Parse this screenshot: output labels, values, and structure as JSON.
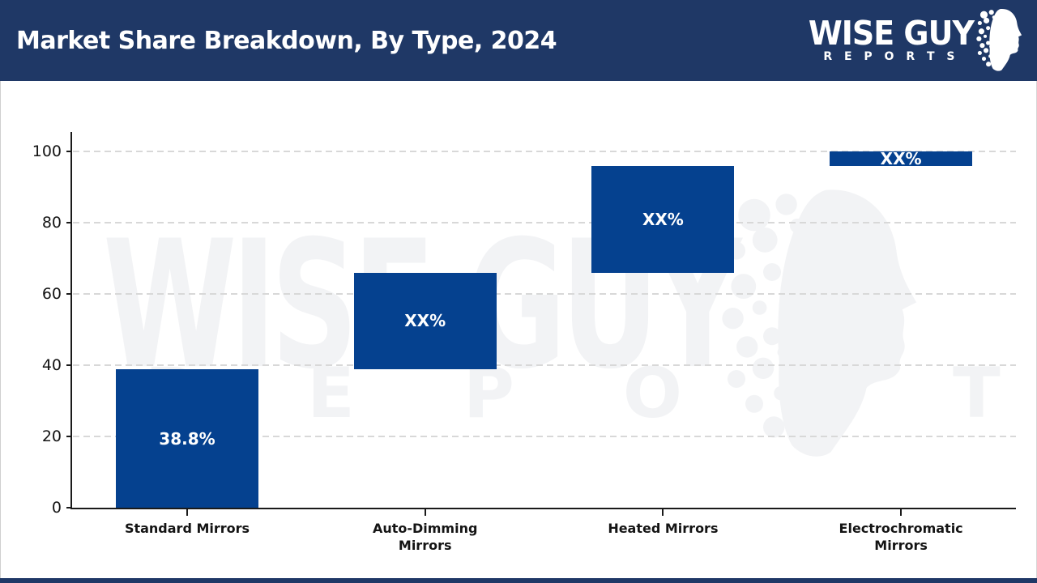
{
  "header": {
    "title": "Market Share Breakdown, By Type, 2024",
    "logo": {
      "name": "WISE GUY",
      "sub": "R E P O R T S"
    }
  },
  "watermark": {
    "line1": "WISE GUY",
    "line2": "R E P O R T S"
  },
  "colors": {
    "header_bg": "#1f3866",
    "bar_blue": "#05418f",
    "grid_gray": "#d8d8d8",
    "axis_black": "#1a1a1a",
    "watermark_gray": "#f2f3f5",
    "value_label_white": "#ffffff"
  },
  "chart_data": {
    "type": "bar",
    "subtype": "waterfall",
    "title": "Market Share Breakdown, By Type, 2024",
    "categories": [
      "Standard Mirrors",
      "Auto-Dimming Mirrors",
      "Heated Mirrors",
      "Electrochromatic Mirrors"
    ],
    "category_label_lines": [
      [
        "Standard Mirrors"
      ],
      [
        "Auto-Dimming",
        "Mirrors"
      ],
      [
        "Heated Mirrors"
      ],
      [
        "Electrochromatic",
        "Mirrors"
      ]
    ],
    "segments": [
      {
        "category": "Standard Mirrors",
        "start": 0,
        "end": 38.8,
        "label": "38.8%"
      },
      {
        "category": "Auto-Dimming Mirrors",
        "start": 38.8,
        "end": 66,
        "label": "XX%"
      },
      {
        "category": "Heated Mirrors",
        "start": 66,
        "end": 96,
        "label": "XX%"
      },
      {
        "category": "Electrochromatic Mirrors",
        "start": 96,
        "end": 100,
        "label": "XX%"
      }
    ],
    "xlabel": "",
    "ylabel": "",
    "yticks": [
      0,
      20,
      40,
      60,
      80,
      100
    ],
    "ylim": [
      0,
      105
    ],
    "grid": "horizontal-dashed",
    "legend": "none",
    "bar_color": "#05418f",
    "value_label_color": "#ffffff"
  }
}
